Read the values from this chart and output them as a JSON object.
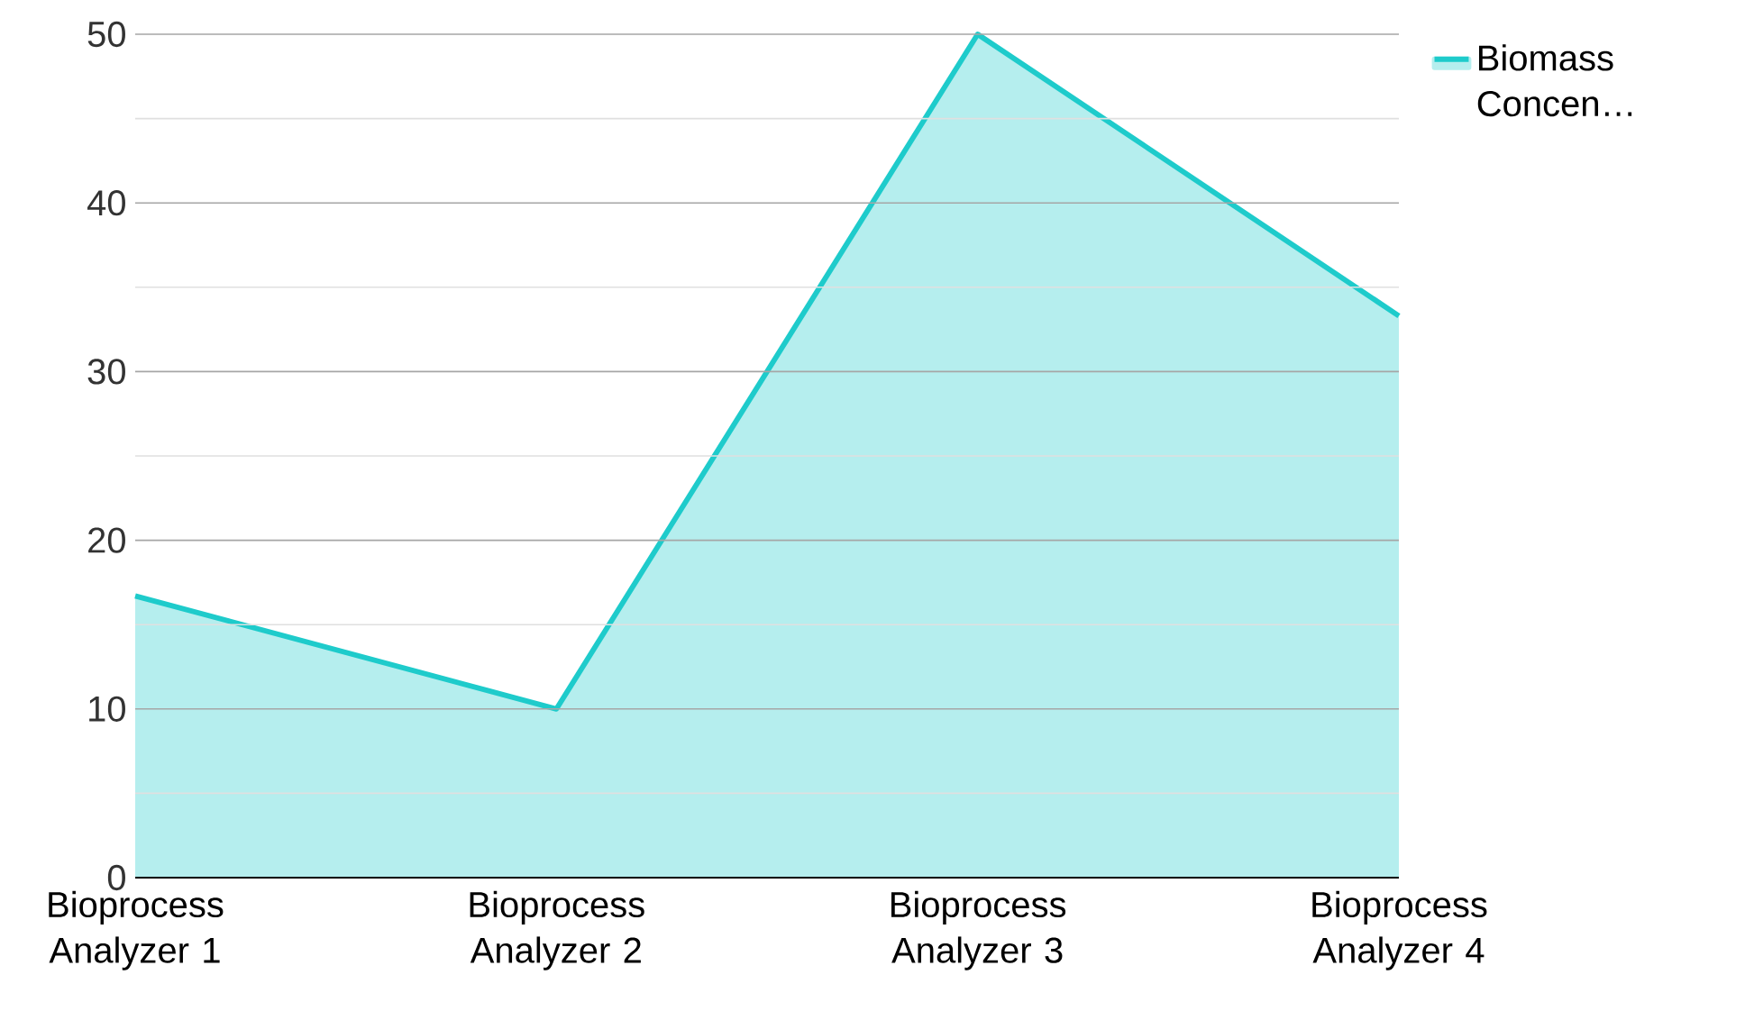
{
  "chart_data": {
    "type": "area",
    "categories": [
      "Bioprocess Analyzer 1",
      "Bioprocess Analyzer 2",
      "Bioprocess Analyzer 3",
      "Bioprocess Analyzer 4"
    ],
    "series": [
      {
        "name": "Biomass Concen…",
        "color": "#1ecbcb",
        "values": [
          16.7,
          10,
          50,
          33.3
        ]
      }
    ],
    "ylim": [
      0,
      50
    ],
    "yticks": [
      0,
      10,
      20,
      30,
      40,
      50
    ],
    "grid": "y",
    "legend": "top right"
  }
}
